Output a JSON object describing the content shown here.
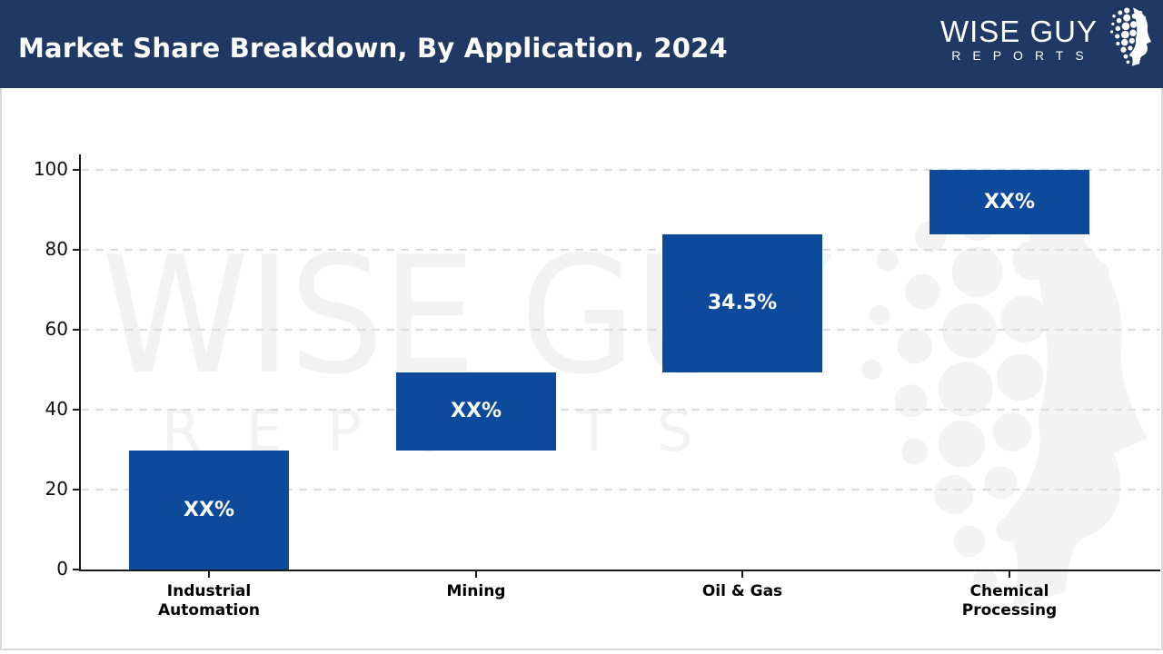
{
  "header": {
    "title": "Market Share Breakdown, By Application, 2024",
    "logo": {
      "name": "WISE GUY",
      "subtitle": "REPORTS"
    }
  },
  "watermark": {
    "name": "WISE GUY",
    "subtitle": "REPORTS"
  },
  "chart_data": {
    "type": "bar",
    "subtype": "waterfall",
    "title": "Market Share Breakdown, By Application, 2024",
    "xlabel": "",
    "ylabel": "",
    "ylim": [
      0,
      100
    ],
    "yticks": [
      0,
      20,
      40,
      60,
      80,
      100
    ],
    "grid": "horizontal-dashed",
    "legend": "none",
    "categories": [
      "Industrial Automation",
      "Mining",
      "Oil & Gas",
      "Chemical Processing"
    ],
    "categories_lines": [
      [
        "Industrial",
        "Automation"
      ],
      [
        "Mining"
      ],
      [
        "Oil & Gas"
      ],
      [
        "Chemical",
        "Processing"
      ]
    ],
    "series": [
      {
        "name": "Market Share (%)",
        "segments": [
          {
            "category": "Industrial Automation",
            "start": 0,
            "end": 29.8,
            "value": 29.8,
            "label": "XX%"
          },
          {
            "category": "Mining",
            "start": 29.8,
            "end": 49.3,
            "value": 19.5,
            "label": "XX%"
          },
          {
            "category": "Oil & Gas",
            "start": 49.3,
            "end": 83.8,
            "value": 34.5,
            "label": "34.5%"
          },
          {
            "category": "Chemical Processing",
            "start": 83.8,
            "end": 100,
            "value": 16.2,
            "label": "XX%"
          }
        ]
      }
    ],
    "bar_color": "#0d4a9c"
  },
  "colors": {
    "header_bg": "#1f3864",
    "bar": "#0d4a9c",
    "axis": "#1a1a1a",
    "grid": "#dcdcdc",
    "watermark": "#f2f2f2",
    "title_text": "#ffffff",
    "bar_label_text": "#ffffff",
    "tick_text": "#111111"
  }
}
